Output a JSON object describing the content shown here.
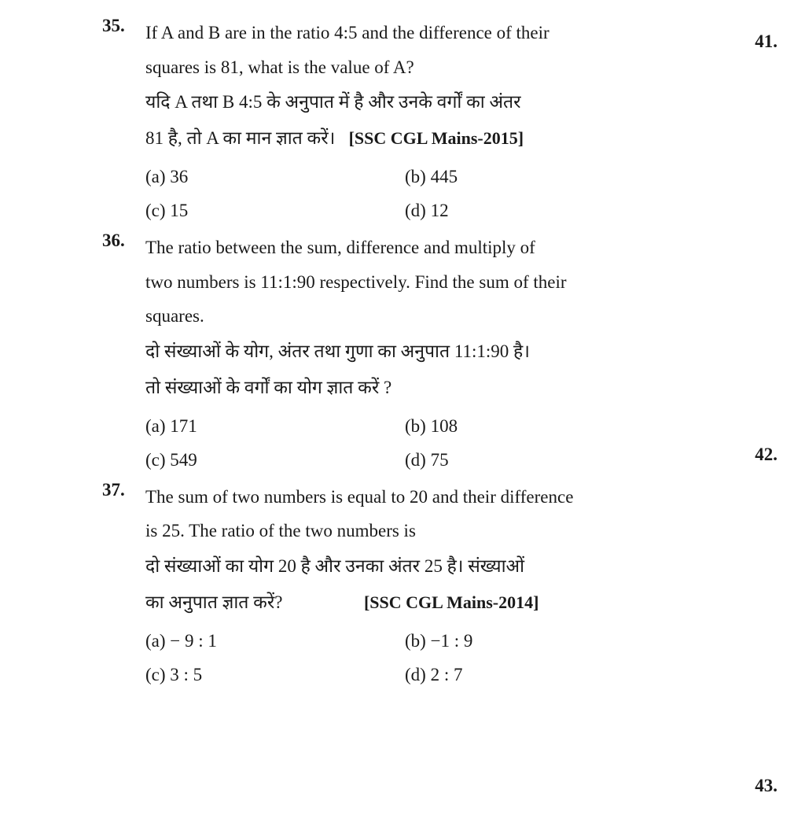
{
  "questions": [
    {
      "number": "35.",
      "english_line1": "If A and B are in the ratio 4:5 and the difference of their",
      "english_line2": "squares is 81, what is the value of A?",
      "hindi_line1": "यदि A  तथा B 4:5  के अनुपात में है और उनके वर्गों का अंतर",
      "hindi_line2": "81  है, तो A  का मान ज्ञात करें।",
      "source": "[SSC CGL Mains-2015]",
      "options": {
        "a": "(a)  36",
        "b": "(b)  445",
        "c": "(c)  15",
        "d": "(d)  12"
      }
    },
    {
      "number": "36.",
      "english_line1": "The ratio between the sum, difference and multiply of",
      "english_line2": "two numbers is 11:1:90 respectively. Find the sum of their",
      "english_line3": "squares.",
      "hindi_line1": "दो संख्याओं के योग, अंतर तथा गुणा का अनुपात 11:1:90 है।",
      "hindi_line2": "तो संख्याओं के वर्गों का योग ज्ञात करें ?",
      "options": {
        "a": "(a)  171",
        "b": "(b)  108",
        "c": "(c)  549",
        "d": "(d)  75"
      }
    },
    {
      "number": "37.",
      "english_line1": "The sum of two numbers is equal to 20 and their difference",
      "english_line2": "is 25. The ratio of the two numbers is",
      "hindi_line1": "दो संख्याओं का योग 20 है और उनका अंतर 25 है। संख्याओं",
      "hindi_line2": "का अनुपात ज्ञात करें?",
      "source": "[SSC CGL Mains-2014]",
      "options": {
        "a": "(a)  − 9 : 1",
        "b": "(b) −1 : 9",
        "c": "(c)  3 : 5",
        "d": "(d)  2 : 7"
      }
    }
  ],
  "margin_numbers": {
    "n41": "41.",
    "n42": "42.",
    "n43": "43."
  },
  "colors": {
    "background": "#ffffff",
    "text": "#1a1a1a"
  }
}
